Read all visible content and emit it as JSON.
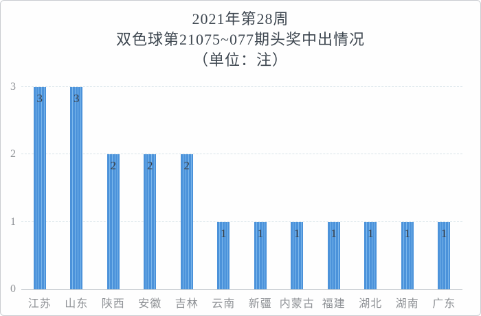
{
  "title": {
    "line1": "2021年第28周",
    "line2": "双色球第21075~077期头奖中出情况",
    "line3": "（单位：注）"
  },
  "chart_data": {
    "type": "bar",
    "title": "2021年第28周 双色球第21075~077期头奖中出情况（单位：注）",
    "categories": [
      "江苏",
      "山东",
      "陕西",
      "安徽",
      "吉林",
      "云南",
      "新疆",
      "内蒙古",
      "福建",
      "湖北",
      "湖南",
      "广东"
    ],
    "values": [
      3,
      3,
      2,
      2,
      2,
      1,
      1,
      1,
      1,
      1,
      1,
      1
    ],
    "xlabel": "",
    "ylabel": "",
    "ylim": [
      0,
      3
    ],
    "yticks": [
      0,
      1,
      2,
      3
    ],
    "grid": "horizontal-dashed",
    "legend_position": "none",
    "bar_value_labels": true
  },
  "colors": {
    "bar_primary": "#4b92da",
    "bar_stripe": "#7db8ec",
    "gridline": "#d7e3e8",
    "axis_line": "#c8cdd2",
    "tick_label": "#8f9296",
    "value_label": "#3a3d41",
    "title_text": "#3e4750",
    "frame_border": "#c9ccd0",
    "background": "#fefefe"
  }
}
